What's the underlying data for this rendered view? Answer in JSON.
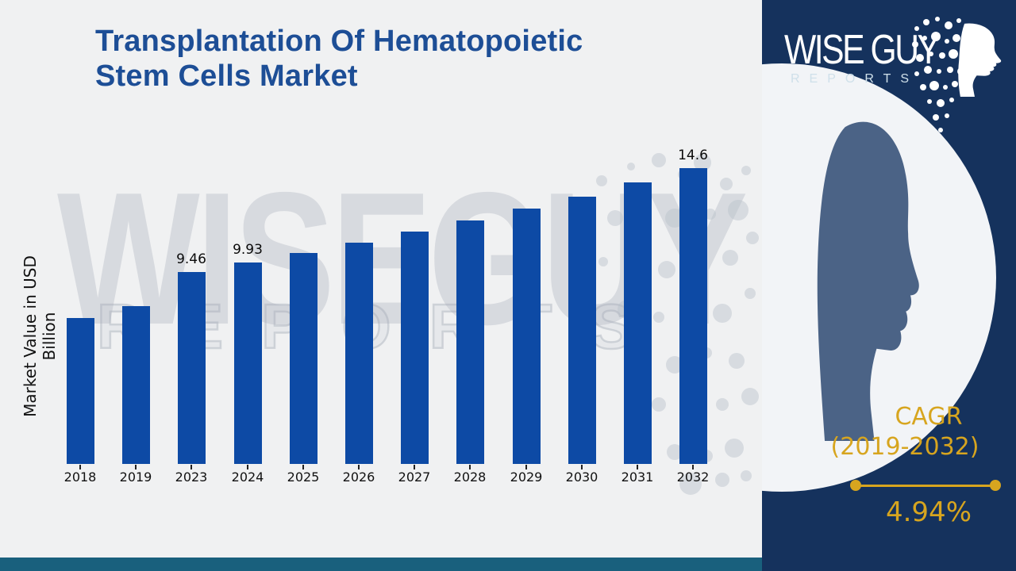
{
  "header": {
    "title_line1": "Transplantation Of Hematopoietic",
    "title_line2": "Stem Cells Market",
    "title_color": "#1d4e96"
  },
  "watermark": {
    "word1": "WISEGUY",
    "word2": "REPORTS"
  },
  "chart_data": {
    "type": "bar",
    "title": "Transplantation Of Hematopoietic Stem Cells Market",
    "ylabel": "Market Value in USD Billion",
    "xlabel": "",
    "ylim": [
      0,
      15.5
    ],
    "grid": false,
    "legend": false,
    "bar_color": "#0d4aa5",
    "categories": [
      "2018",
      "2019",
      "2023",
      "2024",
      "2025",
      "2026",
      "2027",
      "2028",
      "2029",
      "2030",
      "2031",
      "2032"
    ],
    "values": [
      7.2,
      7.78,
      9.46,
      9.93,
      10.4,
      10.92,
      11.46,
      12.02,
      12.6,
      13.2,
      13.9,
      14.6
    ],
    "data_labels": {
      "2023": "9.46",
      "2024": "9.93",
      "2032": "14.6"
    }
  },
  "side_panel": {
    "background": "#15325d",
    "logo": {
      "brand_top": "WISE GUY",
      "brand_bottom": "REPORTS"
    },
    "cagr": {
      "heading": "CAGR",
      "range": "(2019-2032)",
      "value": "4.94%",
      "accent_color": "#d7a51f"
    }
  },
  "footer": {
    "strip_color": "#19607d"
  }
}
